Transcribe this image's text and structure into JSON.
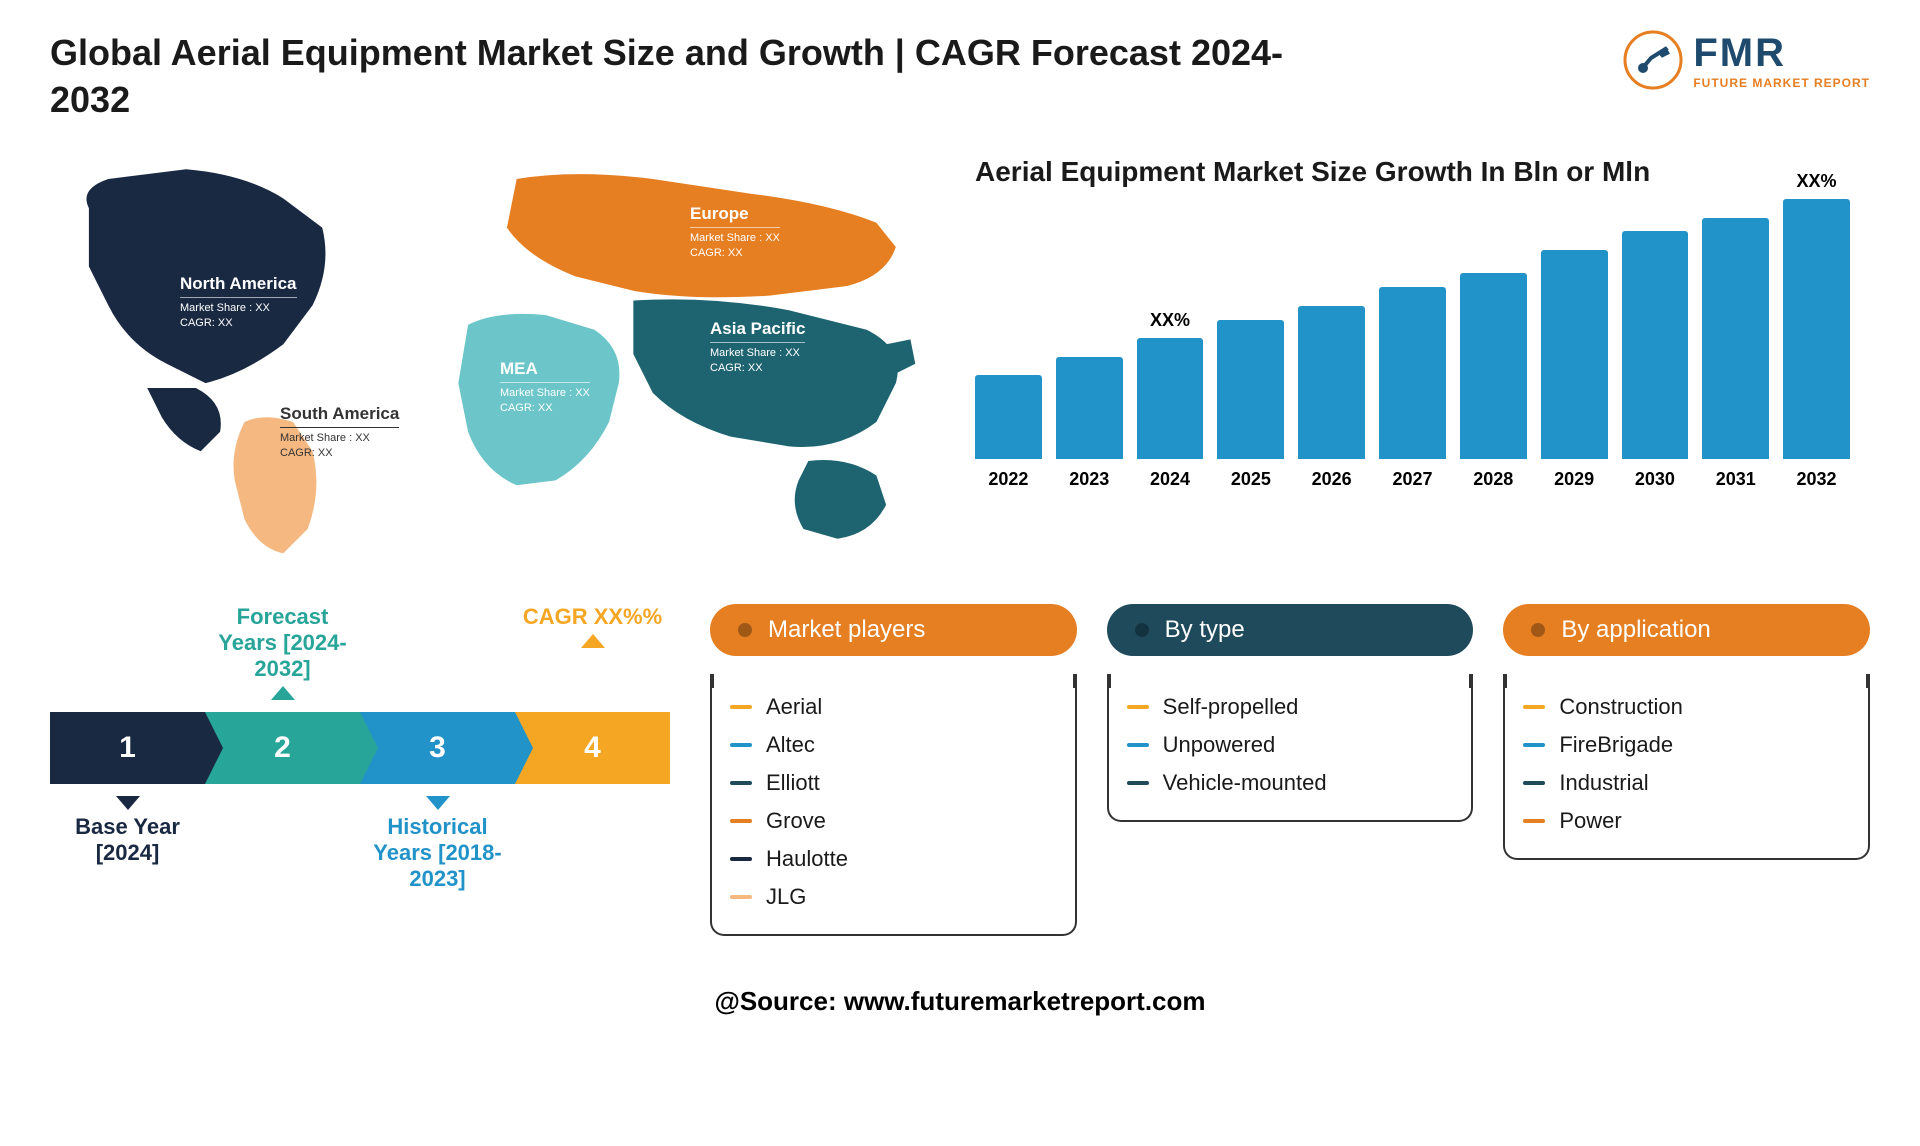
{
  "title": "Global Aerial Equipment Market Size and Growth | CAGR Forecast 2024-2032",
  "logo": {
    "brand": "FMR",
    "sub": "FUTURE MARKET REPORT"
  },
  "source": "@Source: www.futuremarketreport.com",
  "colors": {
    "navy": "#1a2942",
    "teal": "#27a599",
    "blue": "#2193c9",
    "orange": "#e67e22",
    "darkteal": "#1e4a5c",
    "lightcyan": "#6bc5c9",
    "peach": "#f5b880",
    "chartBar": "#2193c9"
  },
  "map": {
    "regions": [
      {
        "name": "North America",
        "share": "Market Share : XX",
        "cagr": "CAGR: XX",
        "color": "#1a2942"
      },
      {
        "name": "South America",
        "share": "Market Share : XX",
        "cagr": "CAGR: XX",
        "color": "#f5b880",
        "textColor": "#333"
      },
      {
        "name": "Europe",
        "share": "Market Share : XX",
        "cagr": "CAGR: XX",
        "color": "#e67e22"
      },
      {
        "name": "MEA",
        "share": "Market Share : XX",
        "cagr": "CAGR: XX",
        "color": "#6bc5c9"
      },
      {
        "name": "Asia Pacific",
        "share": "Market Share : XX",
        "cagr": "CAGR: XX",
        "color": "#1e6470"
      }
    ]
  },
  "chart": {
    "title": "Aerial Equipment Market Size Growth In Bln or Mln",
    "years": [
      "2022",
      "2023",
      "2024",
      "2025",
      "2026",
      "2027",
      "2028",
      "2029",
      "2030",
      "2031",
      "2032"
    ],
    "values": [
      90,
      110,
      130,
      150,
      165,
      185,
      200,
      225,
      245,
      260,
      280
    ],
    "maxValue": 280,
    "labels": {
      "2024": "XX%",
      "2032": "XX%"
    },
    "bar_color": "#2193c9",
    "year_fontsize": 18,
    "label_fontsize": 18
  },
  "timeline": {
    "segments": [
      {
        "num": "1",
        "color": "#1a2942",
        "labelBottom": "Base Year [2024]",
        "labelColor": "#1a2942"
      },
      {
        "num": "2",
        "color": "#27a599",
        "labelTop": "Forecast Years [2024-2032]",
        "labelColor": "#27a599"
      },
      {
        "num": "3",
        "color": "#2193c9",
        "labelBottom": "Historical Years [2018-2023]",
        "labelColor": "#2193c9"
      },
      {
        "num": "4",
        "color": "#f5a623",
        "labelTop": "CAGR XX%%",
        "labelColor": "#f5a623"
      }
    ]
  },
  "categories": [
    {
      "title": "Market players",
      "pillColor": "#e67e22",
      "items": [
        {
          "label": "Aerial",
          "color": "#f5a623"
        },
        {
          "label": "Altec",
          "color": "#2193c9"
        },
        {
          "label": "Elliott",
          "color": "#1e4a5c"
        },
        {
          "label": "Grove",
          "color": "#e67e22"
        },
        {
          "label": "Haulotte",
          "color": "#1a2942"
        },
        {
          "label": "JLG",
          "color": "#f5b880"
        }
      ]
    },
    {
      "title": "By type",
      "pillColor": "#1e4a5c",
      "items": [
        {
          "label": "Self-propelled",
          "color": "#f5a623"
        },
        {
          "label": "Unpowered",
          "color": "#2193c9"
        },
        {
          "label": "Vehicle-mounted",
          "color": "#1e4a5c"
        }
      ]
    },
    {
      "title": "By application",
      "pillColor": "#e67e22",
      "items": [
        {
          "label": "Construction",
          "color": "#f5a623"
        },
        {
          "label": "FireBrigade",
          "color": "#2193c9"
        },
        {
          "label": "Industrial",
          "color": "#1e4a5c"
        },
        {
          "label": "Power",
          "color": "#e67e22"
        }
      ]
    }
  ]
}
